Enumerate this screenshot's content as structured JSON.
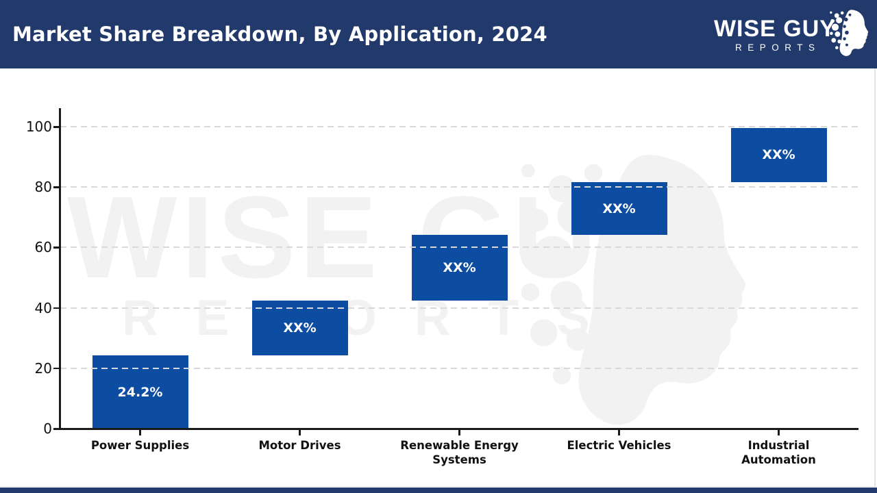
{
  "header": {
    "title": "Market Share Breakdown, By Application, 2024",
    "brand": {
      "name_line1": "WISE GUY",
      "name_line2": "REPORTS"
    }
  },
  "watermark": {
    "line1": "WISE GUY",
    "line2": "REPORTS"
  },
  "footer": {},
  "colors": {
    "header_bg": "#21396B",
    "footer_bg": "#21396B",
    "title_text": "#FFFFFF",
    "bar_fill": "#0C4DA2",
    "bar_label_text": "#FFFFFF",
    "grid_line": "#D9D9D9",
    "axis_line": "#1A1A1A",
    "tick_label_text": "#111111",
    "watermark_gray": "#F2F2F3"
  },
  "chart_data": {
    "type": "bar",
    "subtype": "floating-waterfall",
    "title": "Market Share Breakdown, By Application, 2024",
    "xlabel": "",
    "ylabel": "",
    "units": "%",
    "ylim": [
      0,
      105
    ],
    "yticks": [
      0,
      20,
      40,
      60,
      80,
      100
    ],
    "grid": "horizontal-dashed",
    "legend": "none",
    "categories": [
      "Power Supplies",
      "Motor Drives",
      "Renewable Energy\nSystems",
      "Electric Vehicles",
      "Industrial\nAutomation"
    ],
    "bars": [
      {
        "category": "Power Supplies",
        "start": 0,
        "end": 24.2,
        "label": "24.2%"
      },
      {
        "category": "Motor Drives",
        "start": 24.2,
        "end": 42.3,
        "label": "XX%"
      },
      {
        "category": "Renewable Energy Systems",
        "start": 42.3,
        "end": 64.2,
        "label": "XX%"
      },
      {
        "category": "Electric Vehicles",
        "start": 64.2,
        "end": 81.6,
        "label": "XX%"
      },
      {
        "category": "Industrial Automation",
        "start": 81.6,
        "end": 99.6,
        "label": "XX%"
      }
    ]
  }
}
